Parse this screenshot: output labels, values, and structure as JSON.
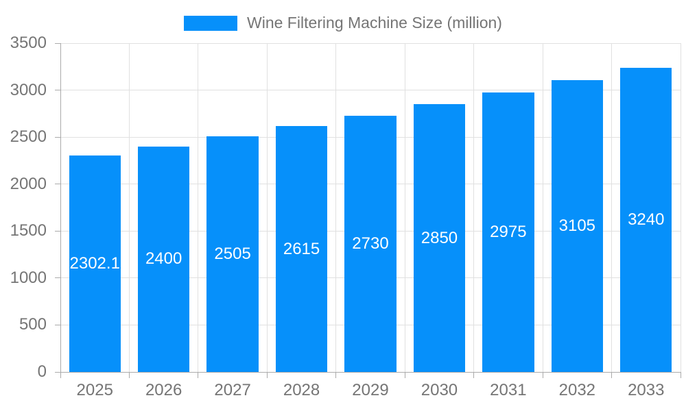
{
  "chart_data": {
    "type": "bar",
    "title": "Wine Filtering Machine Size (million)",
    "categories": [
      "2025",
      "2026",
      "2027",
      "2028",
      "2029",
      "2030",
      "2031",
      "2032",
      "2033"
    ],
    "values": [
      2302.1,
      2400,
      2505,
      2615,
      2730,
      2850,
      2975,
      3105,
      3240
    ],
    "value_labels": [
      "2302.1",
      "2400",
      "2505",
      "2615",
      "2730",
      "2850",
      "2975",
      "3105",
      "3240"
    ],
    "xlabel": "",
    "ylabel": "",
    "ylim": [
      0,
      3500
    ],
    "ytick_step": 500,
    "yticks": [
      "0",
      "500",
      "1000",
      "1500",
      "2000",
      "2500",
      "3000",
      "3500"
    ],
    "grid": true,
    "legend_position": "top-center",
    "bar_color": "#0690fa",
    "value_label_color": "#ffffff",
    "axis_text_color": "#757575",
    "grid_color": "#e0e0e0",
    "axis_line_color": "#aaaaaa"
  }
}
